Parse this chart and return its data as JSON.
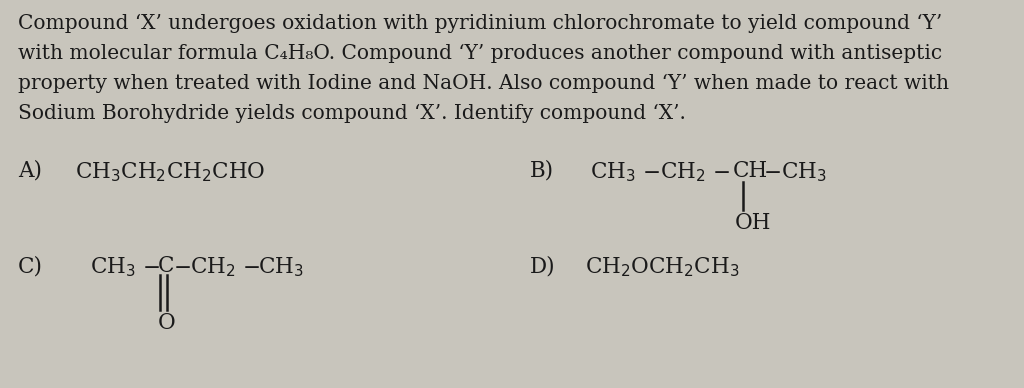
{
  "background_color": "#c8c5bc",
  "text_color": "#1a1a1a",
  "para_line1": "Compound ‘X’ undergoes oxidation with pyridinium chlorochromate to yield compound ‘Y’",
  "para_line2": "with molecular formula C₄H₈O. Compound ‘Y’ produces another compound with antiseptic",
  "para_line3": "property when treated with Iodine and NaOH. Also compound ‘Y’ when made to react with",
  "para_line4": "Sodium Borohydride yields compound ‘X’. Identify compound ‘X’.",
  "font_size_para": 14.5,
  "font_size_opt": 15.5,
  "font_family": "DejaVu Serif"
}
